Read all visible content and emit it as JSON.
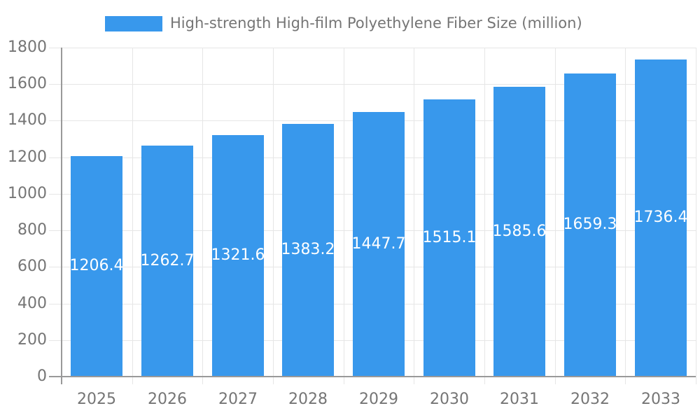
{
  "chart_data": {
    "type": "bar",
    "title": "",
    "legend": "High-strength High-film Polyethylene Fiber Size (million)",
    "legend_position": "top",
    "categories": [
      "2025",
      "2026",
      "2027",
      "2028",
      "2029",
      "2030",
      "2031",
      "2032",
      "2033"
    ],
    "values": [
      1206.4,
      1262.7,
      1321.6,
      1383.2,
      1447.7,
      1515.1,
      1585.6,
      1659.3,
      1736.4
    ],
    "value_labels": [
      "1206.4",
      "1262.7",
      "1321.6",
      "1383.2",
      "1447.7",
      "1515.1",
      "1585.6",
      "1659.3",
      "1736.4"
    ],
    "xlabel": "",
    "ylabel": "",
    "ylim": [
      0,
      1800
    ],
    "ytick_step": 200,
    "yticks": [
      0,
      200,
      400,
      600,
      800,
      1000,
      1200,
      1400,
      1600,
      1800
    ],
    "grid": true,
    "colors": {
      "bar": "#3898EC",
      "bar_label_text": "#FFFFFF",
      "gridline": "#E6E6E6",
      "axis_line": "#999999",
      "tick_text": "#757575",
      "legend_text": "#757575",
      "background": "#FFFFFF"
    }
  }
}
